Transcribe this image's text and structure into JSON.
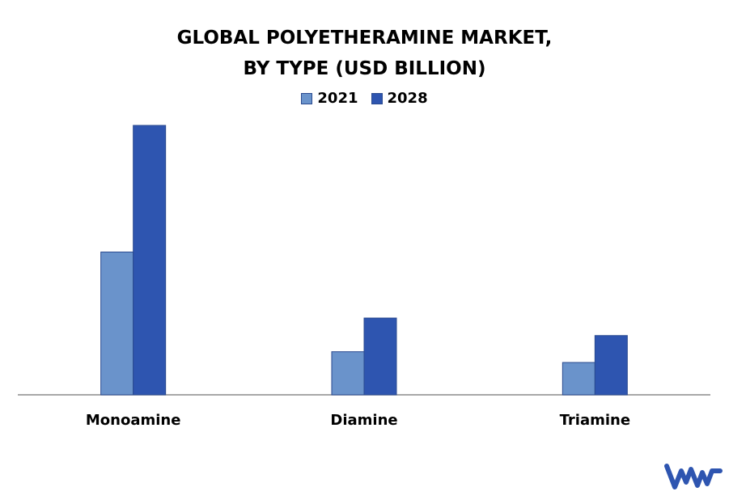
{
  "chart_data": {
    "type": "bar",
    "title_lines": [
      "GLOBAL POLYETHERAMINE MARKET,",
      "BY TYPE (USD BILLION)"
    ],
    "categories": [
      "Monoamine",
      "Diamine",
      "Triamine"
    ],
    "series": [
      {
        "name": "2021",
        "values": [
          0.53,
          0.16,
          0.12
        ],
        "color": "#6a93cb"
      },
      {
        "name": "2028",
        "values": [
          1.0,
          0.285,
          0.22
        ],
        "color": "#2e55b0"
      }
    ],
    "ylim": [
      0,
      1.0
    ],
    "grid": false,
    "legend": "top-center"
  },
  "logo": {
    "text": "vmr",
    "color": "#2e55b0"
  }
}
